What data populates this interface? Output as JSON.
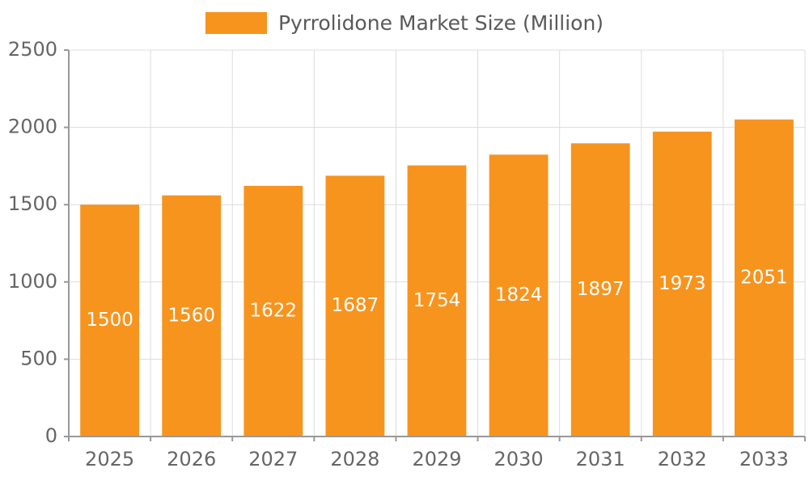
{
  "chart_data": {
    "type": "bar",
    "title": "Pyrrolidone Market Size (Million)",
    "categories": [
      "2025",
      "2026",
      "2027",
      "2028",
      "2029",
      "2030",
      "2031",
      "2032",
      "2033"
    ],
    "values": [
      1500,
      1560,
      1622,
      1687,
      1754,
      1824,
      1897,
      1973,
      2051
    ],
    "series": [
      {
        "name": "Pyrrolidone Market Size (Million)",
        "values": [
          1500,
          1560,
          1622,
          1687,
          1754,
          1824,
          1897,
          1973,
          2051
        ]
      }
    ],
    "xlabel": "",
    "ylabel": "",
    "ylim": [
      0,
      2500
    ],
    "yticks": [
      0,
      500,
      1000,
      1500,
      2000,
      2500
    ],
    "grid": true,
    "legend_position": "top",
    "colors": {
      "bar": "#F7941E",
      "value_label": "#FFFFFF",
      "axis_text": "#666666",
      "grid_line": "#DDDDDD",
      "axis_line": "#999999"
    }
  }
}
